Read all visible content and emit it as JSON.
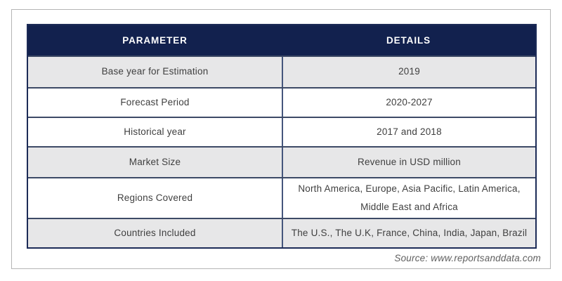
{
  "colors": {
    "navy": "#12214E",
    "row_shaded": "#E7E7E8",
    "row_plain": "#FFFFFF",
    "border_inner": "#3D4A66",
    "border_outer": "#1C2B57",
    "divider": "#45567C",
    "frame_border": "#B5B5B5",
    "text": "#3F3F3F",
    "header_text": "#FFFFFF",
    "source_text": "#5F5F5F"
  },
  "table": {
    "header": {
      "parameter": "PARAMETER",
      "details": "DETAILS"
    },
    "rows": [
      {
        "parameter": "Base year for Estimation",
        "details": "2019",
        "shaded": true
      },
      {
        "parameter": "Forecast Period",
        "details": "2020-2027",
        "shaded": false
      },
      {
        "parameter": "Historical year",
        "details": "2017 and 2018",
        "shaded": false
      },
      {
        "parameter": "Market Size",
        "details": "Revenue in USD million",
        "shaded": true
      },
      {
        "parameter": "Regions Covered",
        "details": "North America, Europe, Asia Pacific, Latin America, Middle East and Africa",
        "shaded": false
      },
      {
        "parameter": "Countries Included",
        "details": "The U.S., The  U.K, France, China, India, Japan, Brazil",
        "shaded": true
      }
    ]
  },
  "source": {
    "text": "Source: www.reportsanddata.com"
  },
  "chart_data": {
    "type": "table",
    "title": "",
    "columns": [
      "PARAMETER",
      "DETAILS"
    ],
    "rows": [
      [
        "Base year for Estimation",
        "2019"
      ],
      [
        "Forecast Period",
        "2020-2027"
      ],
      [
        "Historical year",
        "2017 and 2018"
      ],
      [
        "Market Size",
        "Revenue in USD million"
      ],
      [
        "Regions Covered",
        "North America, Europe, Asia Pacific, Latin America, Middle East and Africa"
      ],
      [
        "Countries Included",
        "The U.S., The  U.K, France, China, India, Japan, Brazil"
      ]
    ],
    "legend_position": "none",
    "grid": true
  }
}
